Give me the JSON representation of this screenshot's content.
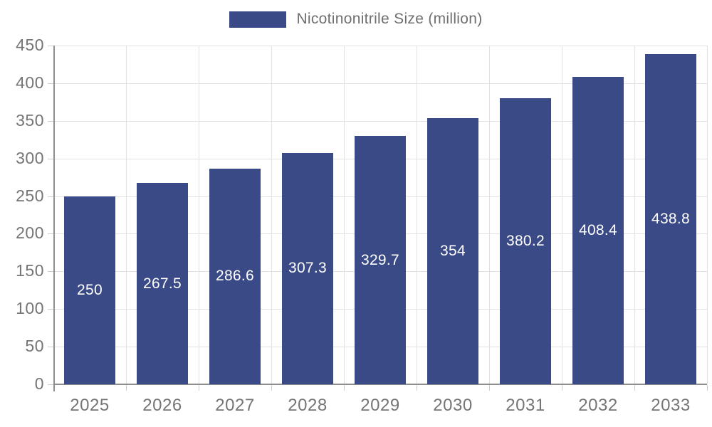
{
  "chart_data": {
    "type": "bar",
    "title": "Nicotinonitrile Size (million)",
    "legend_position": "top",
    "categories": [
      "2025",
      "2026",
      "2027",
      "2028",
      "2029",
      "2030",
      "2031",
      "2032",
      "2033"
    ],
    "series": [
      {
        "name": "Nicotinonitrile Size (million)",
        "values": [
          250,
          267.5,
          286.6,
          307.3,
          329.7,
          354,
          380.2,
          408.4,
          438.8
        ]
      }
    ],
    "value_labels": [
      "250",
      "267.5",
      "286.6",
      "307.3",
      "329.7",
      "354",
      "380.2",
      "408.4",
      "438.8"
    ],
    "xlabel": "",
    "ylabel": "",
    "ylim": [
      0,
      450
    ],
    "ytick_step": 50,
    "yticks": [
      "0",
      "50",
      "100",
      "150",
      "200",
      "250",
      "300",
      "350",
      "400",
      "450"
    ],
    "grid": true,
    "colors": {
      "bar": "#3a4a86",
      "grid_line": "#e2e2e2",
      "axis_line": "#8f8f8f",
      "tick_mark": "#cfcfcf",
      "tick_text": "#757575",
      "legend_text": "#6f6f6f",
      "value_label_text": "#ffffff",
      "background": "#ffffff"
    }
  }
}
